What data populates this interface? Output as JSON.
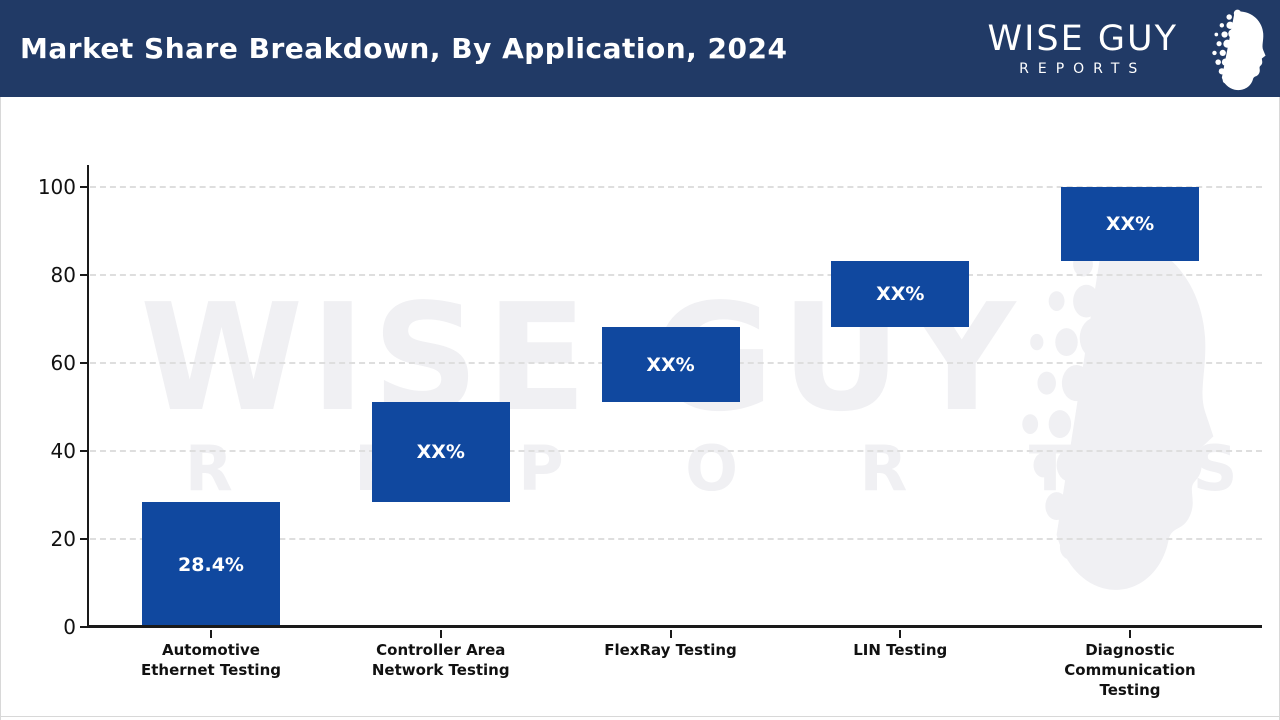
{
  "header": {
    "title": "Market Share Breakdown, By Application, 2024",
    "logo_line1": "WISE GUY",
    "logo_line2": "REPORTS"
  },
  "watermark": {
    "line1": "WISE GUY",
    "line2": "R E P O R T S"
  },
  "chart_data": {
    "type": "bar",
    "subtype": "waterfall",
    "title": "Market Share Breakdown, By Application, 2024",
    "categories": [
      "Automotive Ethernet Testing",
      "Controller Area Network Testing",
      "FlexRay Testing",
      "LIN Testing",
      "Diagnostic Communication Testing"
    ],
    "categories_lines": [
      [
        "Automotive",
        "Ethernet Testing"
      ],
      [
        "Controller Area",
        "Network Testing"
      ],
      [
        "FlexRay Testing"
      ],
      [
        "LIN Testing"
      ],
      [
        "Diagnostic",
        "Communication",
        "Testing"
      ]
    ],
    "segments": [
      {
        "start": 0,
        "end": 28.4,
        "label": "28.4%"
      },
      {
        "start": 28.4,
        "end": 51.1,
        "label": "XX%"
      },
      {
        "start": 51.1,
        "end": 68.2,
        "label": "XX%"
      },
      {
        "start": 68.2,
        "end": 83.2,
        "label": "XX%"
      },
      {
        "start": 83.2,
        "end": 100,
        "label": "XX%"
      }
    ],
    "xlabel": "",
    "ylabel": "",
    "ylim": [
      0,
      100
    ],
    "yticks": [
      0,
      20,
      40,
      60,
      80,
      100
    ],
    "grid": "horizontal-dashed",
    "legend": "none",
    "colors": {
      "bar": "#10489f",
      "bar_label": "#ffffff",
      "axis": "#1a1a1a",
      "gridline": "#dedede",
      "header_bg": "#213a66",
      "header_text": "#ffffff",
      "watermark": "#f0f0f3"
    }
  }
}
